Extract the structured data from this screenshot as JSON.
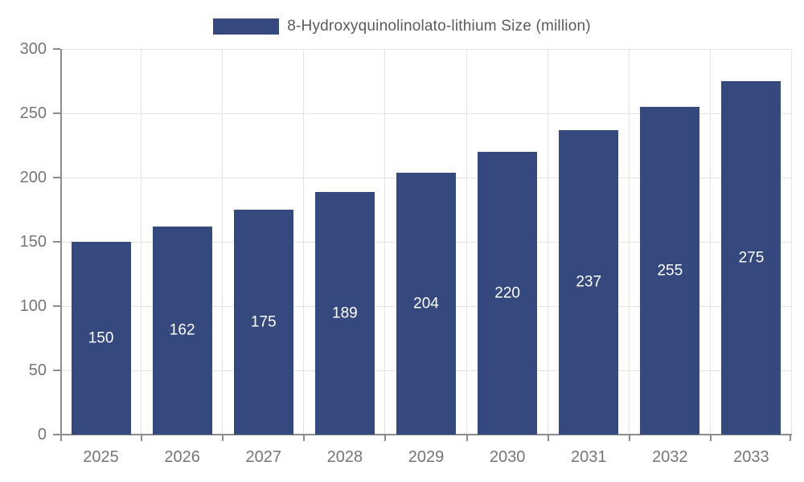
{
  "legend": {
    "label": "8-Hydroxyquinolinolato-lithium Size (million)"
  },
  "chart_data": {
    "type": "bar",
    "title": "8-Hydroxyquinolinolato-lithium Size (million)",
    "series_name": "8-Hydroxyquinolinolato-lithium Size (million)",
    "categories": [
      "2025",
      "2026",
      "2027",
      "2028",
      "2029",
      "2030",
      "2031",
      "2032",
      "2033"
    ],
    "values": [
      150,
      162,
      175,
      189,
      204,
      220,
      237,
      255,
      275
    ],
    "xlabel": "",
    "ylabel": "",
    "ylim": [
      0,
      300
    ],
    "yticks": [
      0,
      50,
      100,
      150,
      200,
      250,
      300
    ],
    "grid": true,
    "legend_position": "top",
    "value_labels": "inside-center"
  },
  "colors": {
    "bar": "#35497F",
    "grid": "#e3e3e3",
    "axis": "#8c8c8c",
    "tick_text": "#757575",
    "legend_text": "#5a5a5a",
    "value_label_text": "#ffffff",
    "background": "#ffffff"
  }
}
